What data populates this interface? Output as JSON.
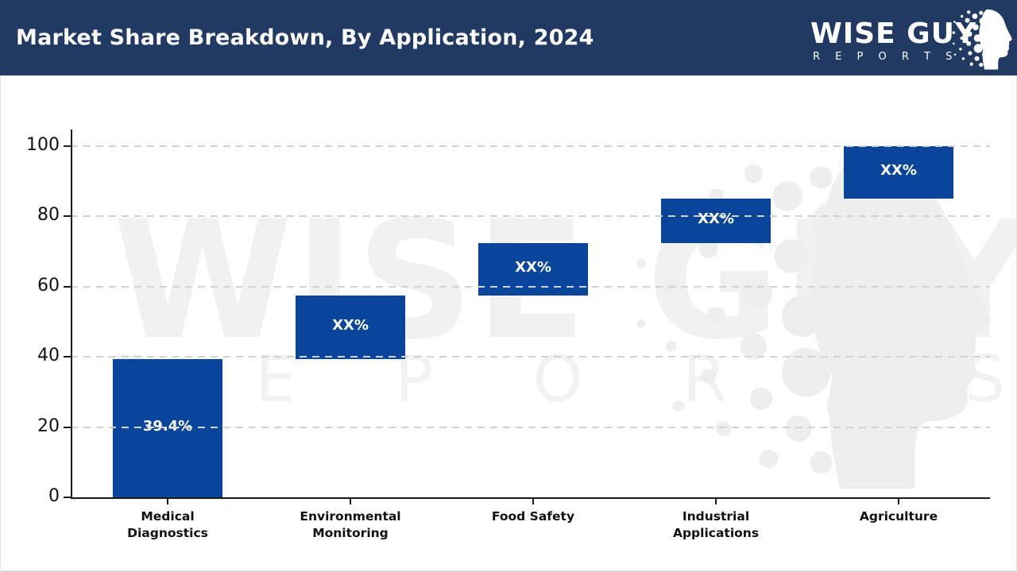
{
  "header": {
    "title": "Market Share Breakdown, By Application, 2024",
    "logo": {
      "brand": "WISE GUY",
      "sub": "R E P O R T S"
    }
  },
  "watermark": {
    "brand": "WISE GUY",
    "sub": "R E P O R T S"
  },
  "colors": {
    "header_bg": "#213a64",
    "bar": "#0a459c",
    "grid": "#d3d3d3",
    "axis": "#1a1a1a",
    "bar_label": "#ffffff",
    "tick_label": "#111111",
    "watermark": "#f0f0f0"
  },
  "chart_data": {
    "type": "bar",
    "subtype": "waterfall-stepped",
    "title": "Market Share Breakdown, By Application, 2024",
    "xlabel": "",
    "ylabel": "",
    "ylim": [
      0,
      105
    ],
    "yticks": [
      0,
      20,
      40,
      60,
      80,
      100
    ],
    "grid": "horizontal-dashed, drawn above bars",
    "legend": "none",
    "categories": [
      "Medical Diagnostics",
      "Environmental Monitoring",
      "Food Safety",
      "Industrial Applications",
      "Agriculture"
    ],
    "category_display": [
      "Medical\nDiagnostics",
      "Environmental\nMonitoring",
      "Food Safety",
      "Industrial\nApplications",
      "Agriculture"
    ],
    "segments": [
      {
        "category": "Medical Diagnostics",
        "start": 0,
        "end": 39.4,
        "value": 39.4,
        "label": "39.4%"
      },
      {
        "category": "Environmental Monitoring",
        "start": 39.4,
        "end": 57.5,
        "value": 18.1,
        "label": "XX%"
      },
      {
        "category": "Food Safety",
        "start": 57.5,
        "end": 72.5,
        "value": 15.0,
        "label": "XX%"
      },
      {
        "category": "Industrial Applications",
        "start": 72.5,
        "end": 85.0,
        "value": 12.5,
        "label": "XX%"
      },
      {
        "category": "Agriculture",
        "start": 85.0,
        "end": 100.0,
        "value": 15.0,
        "label": "XX%"
      }
    ]
  }
}
